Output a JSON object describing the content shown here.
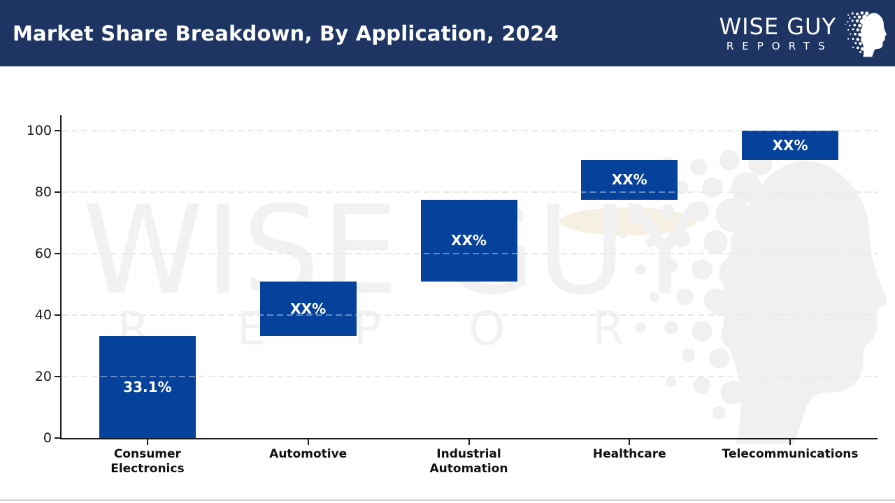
{
  "header": {
    "title": "Market Share Breakdown, By Application, 2024",
    "logo": {
      "line1": "WISE GUY",
      "line2": "REPORTS"
    }
  },
  "watermark": {
    "line1": "WISE GUY",
    "line2": "R E P O R T S"
  },
  "chart_data": {
    "type": "bar",
    "subtype": "waterfall",
    "title": "Market Share Breakdown, By Application, 2024",
    "categories": [
      "Consumer\nElectronics",
      "Automotive",
      "Industrial\nAutomation",
      "Healthcare",
      "Telecommunications"
    ],
    "bars": [
      {
        "category": "Consumer Electronics",
        "start": 0,
        "end": 33.1,
        "label": "33.1%"
      },
      {
        "category": "Automotive",
        "start": 33.1,
        "end": 51.0,
        "label": "XX%"
      },
      {
        "category": "Industrial Automation",
        "start": 51.0,
        "end": 77.5,
        "label": "XX%"
      },
      {
        "category": "Healthcare",
        "start": 77.5,
        "end": 90.5,
        "label": "XX%"
      },
      {
        "category": "Telecommunications",
        "start": 90.5,
        "end": 100.0,
        "label": "XX%"
      }
    ],
    "y_ticks": [
      0,
      20,
      40,
      60,
      80,
      100
    ],
    "ylim": [
      0,
      105
    ],
    "xlabel": "",
    "ylabel": "",
    "grid": "dashed-horizontal",
    "legend": "none",
    "bar_color": "#06429b",
    "bar_label_color": "#ffffff"
  },
  "colors": {
    "header_bg": "#1e3563",
    "bar": "#06429b",
    "axis": "#1a1a1a",
    "gridline": "#dcdcdc",
    "watermark": "#f1f1f1"
  }
}
